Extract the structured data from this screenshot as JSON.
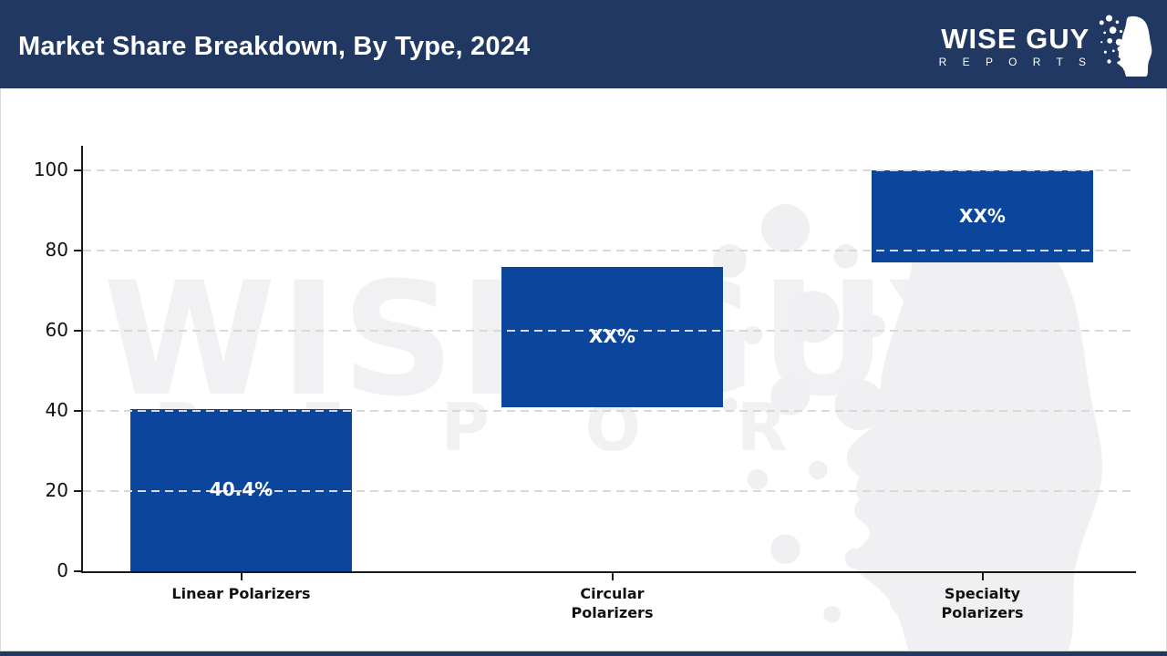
{
  "header": {
    "title": "Market Share Breakdown, By Type, 2024",
    "bg_color": "#213863",
    "logo_line1": "WISE GUY",
    "logo_line2": "R E P O R T S"
  },
  "watermark": {
    "line1": "WISE GUY",
    "line2": "R E P O R T S"
  },
  "chart_data": {
    "type": "bar",
    "subtype": "waterfall",
    "title": "Market Share Breakdown, By Type, 2024",
    "categories": [
      "Linear Polarizers",
      "Circular Polarizers",
      "Specialty Polarizers"
    ],
    "categories_lines": [
      [
        "Linear Polarizers"
      ],
      [
        "Circular",
        "Polarizers"
      ],
      [
        "Specialty",
        "Polarizers"
      ]
    ],
    "segments": [
      {
        "category": "Linear Polarizers",
        "start": 0,
        "end": 40.4,
        "label": "40.4%"
      },
      {
        "category": "Circular Polarizers",
        "start": 41,
        "end": 76,
        "label": "XX%"
      },
      {
        "category": "Specialty Polarizers",
        "start": 77,
        "end": 100,
        "label": "XX%"
      }
    ],
    "yticks": [
      0,
      20,
      40,
      60,
      80,
      100
    ],
    "ylim": [
      0,
      105
    ],
    "xlabel": "",
    "ylabel": "",
    "bar_color": "#0B469C",
    "bar_label_color": "#ffffff",
    "grid": {
      "axis": "y",
      "style": "dashed",
      "color": "#d9d9d9"
    },
    "legend": "none"
  }
}
